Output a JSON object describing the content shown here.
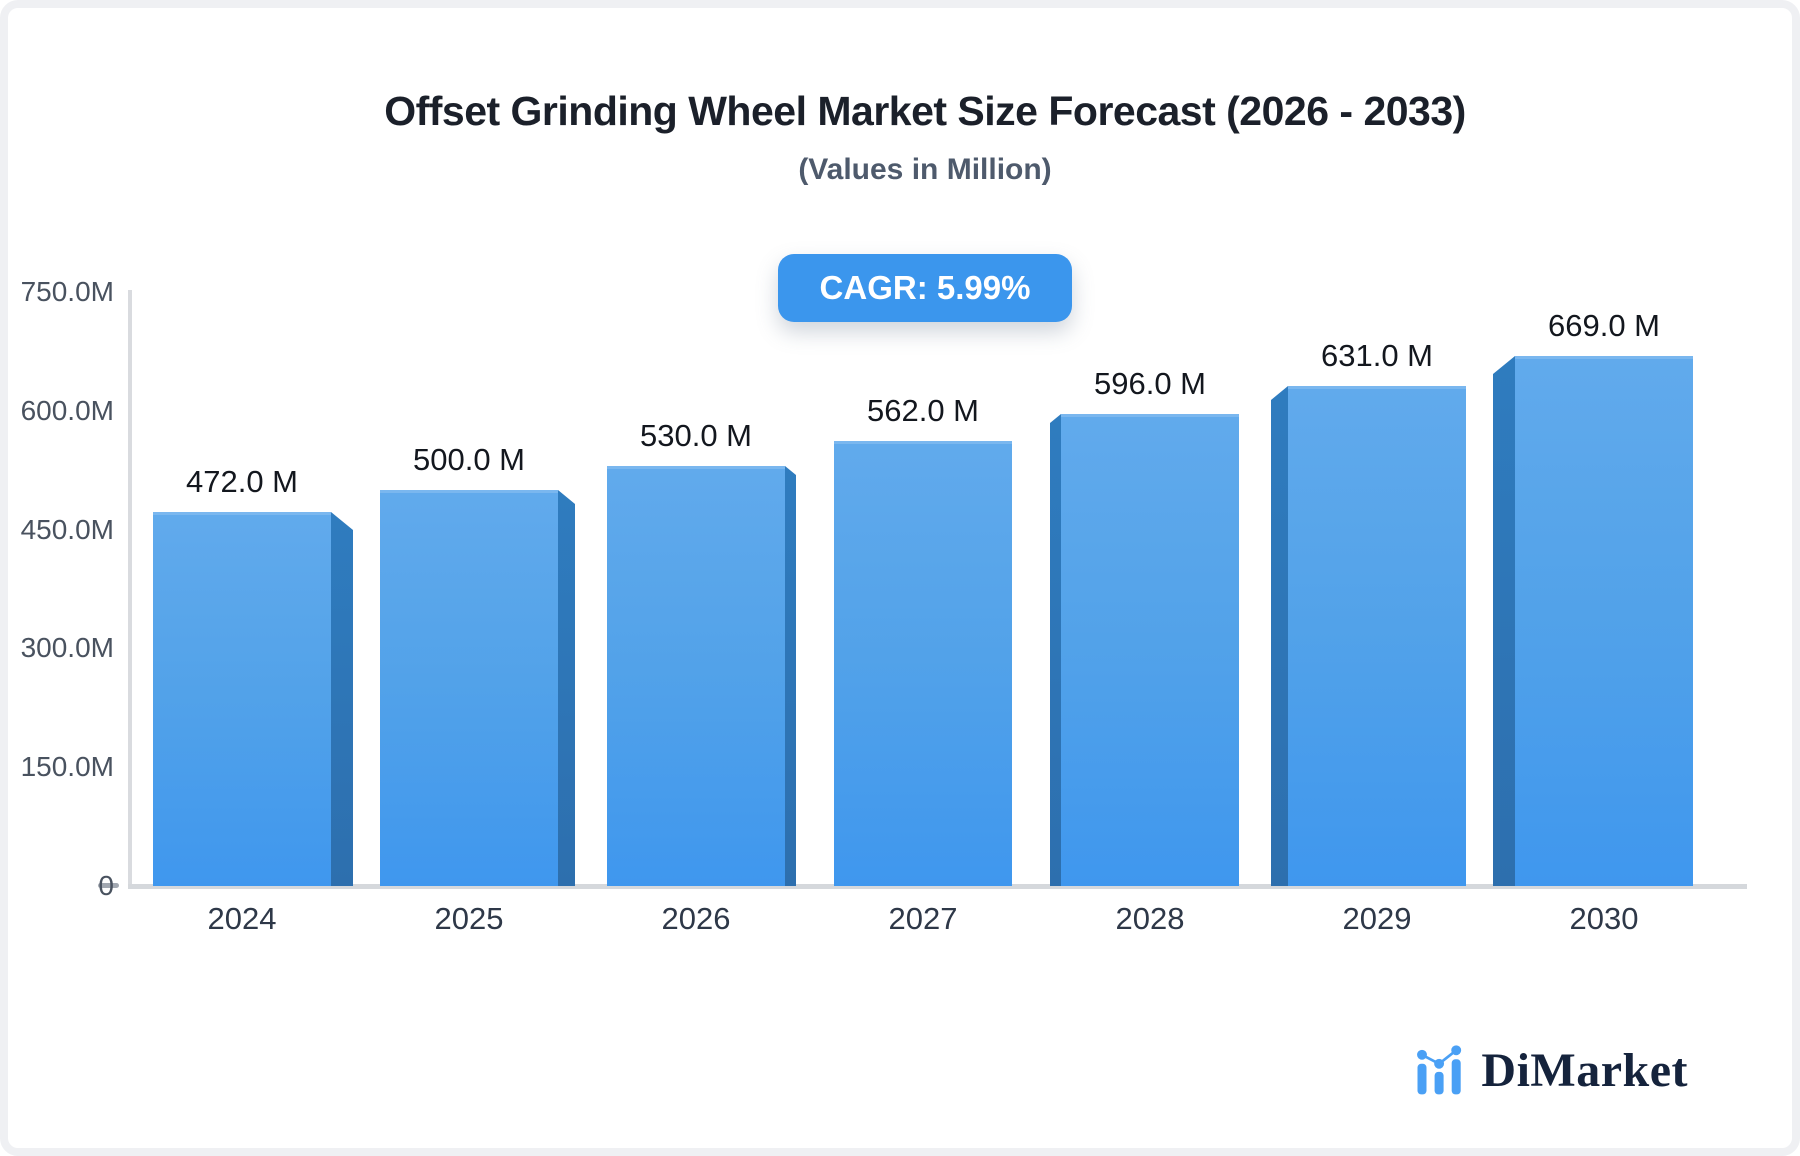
{
  "title": "Offset Grinding Wheel Market Size Forecast (2026 - 2033)",
  "subtitle": "(Values in Million)",
  "badge": {
    "label": "CAGR: 5.99%",
    "bg_color": "#3b96ed",
    "text_color": "#ffffff"
  },
  "chart_data": {
    "type": "bar",
    "categories": [
      "2024",
      "2025",
      "2026",
      "2027",
      "2028",
      "2029",
      "2030"
    ],
    "values": [
      472.0,
      500.0,
      530.0,
      562.0,
      596.0,
      631.0,
      669.0
    ],
    "value_labels": [
      "472.0 M",
      "500.0 M",
      "530.0 M",
      "562.0 M",
      "596.0 M",
      "631.0 M",
      "669.0 M"
    ],
    "y_ticks": [
      {
        "value": 750,
        "label": "750.0M"
      },
      {
        "value": 600,
        "label": "600.0M"
      },
      {
        "value": 450,
        "label": "450.0M"
      },
      {
        "value": 300,
        "label": "300.0M"
      },
      {
        "value": 150,
        "label": "150.0M"
      },
      {
        "value": 0,
        "label": "0"
      }
    ],
    "ylim": [
      0,
      750
    ],
    "xlabel": "",
    "ylabel": "",
    "grid": false,
    "legend_position": "none",
    "bar_color_top": "#61aaec",
    "bar_color_bottom": "#3f97ee",
    "bar_side_color": "#2e77b9",
    "style": "3d-perspective-bars"
  },
  "watermark": {
    "label": "DiMarket",
    "icon": "bar-chart-trend-icon",
    "text_color": "#15233c",
    "icon_color": "#4aa0f5"
  }
}
